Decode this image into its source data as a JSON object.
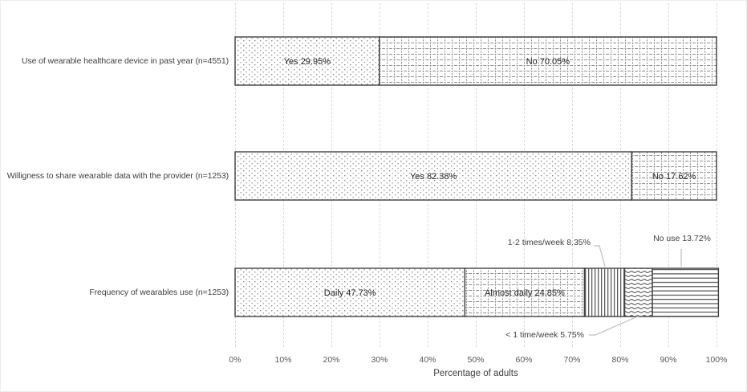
{
  "chart_data": {
    "type": "bar",
    "orientation": "horizontal",
    "stacked": true,
    "title": "",
    "xlabel": "Percentage of adults",
    "xlim": [
      0,
      100
    ],
    "grid": "vertical-dashed-gridlines",
    "x_ticks": [
      "0%",
      "10%",
      "20%",
      "30%",
      "40%",
      "50%",
      "60%",
      "70%",
      "80%",
      "90%",
      "100%"
    ],
    "categories": [
      "Use of wearable healthcare device in past year (n=4551)",
      "Willigness to share wearable data with the provider (n=1253)",
      "Frequency of wearables use (n=1253)"
    ],
    "rows": [
      {
        "category": "Use of wearable healthcare device in past year (n=4551)",
        "segments": [
          {
            "name": "Yes",
            "value": 29.95,
            "pattern": "dots",
            "label_placement": "inside"
          },
          {
            "name": "No",
            "value": 70.05,
            "pattern": "dashed-grid",
            "label_placement": "inside"
          }
        ]
      },
      {
        "category": "Willigness to share wearable data with the provider (n=1253)",
        "segments": [
          {
            "name": "Yes",
            "value": 82.38,
            "pattern": "dots",
            "label_placement": "inside"
          },
          {
            "name": "No",
            "value": 17.62,
            "pattern": "dashed-grid",
            "label_placement": "inside"
          }
        ]
      },
      {
        "category": "Frequency of wearables use (n=1253)",
        "segments": [
          {
            "name": "Daily",
            "value": 47.73,
            "pattern": "dots",
            "label_placement": "inside"
          },
          {
            "name": "Almost daily",
            "value": 24.85,
            "pattern": "dashed-grid",
            "label_placement": "inside"
          },
          {
            "name": "1-2 times/week",
            "value": 8.35,
            "pattern": "vertical-lines",
            "label_placement": "callout-above"
          },
          {
            "name": "< 1 time/week",
            "value": 5.75,
            "pattern": "waves",
            "label_placement": "callout-below"
          },
          {
            "name": "No use",
            "value": 13.72,
            "pattern": "horizontal-lines",
            "label_placement": "callout-above"
          }
        ]
      }
    ],
    "colors": {
      "bar_border": "#404040",
      "pattern_ink": "#404040",
      "pattern_ink_light": "#8c8c8c",
      "gridline": "#d9d9d9",
      "leader_line": "#bfbfbf",
      "text": "#3f3f3f"
    }
  }
}
